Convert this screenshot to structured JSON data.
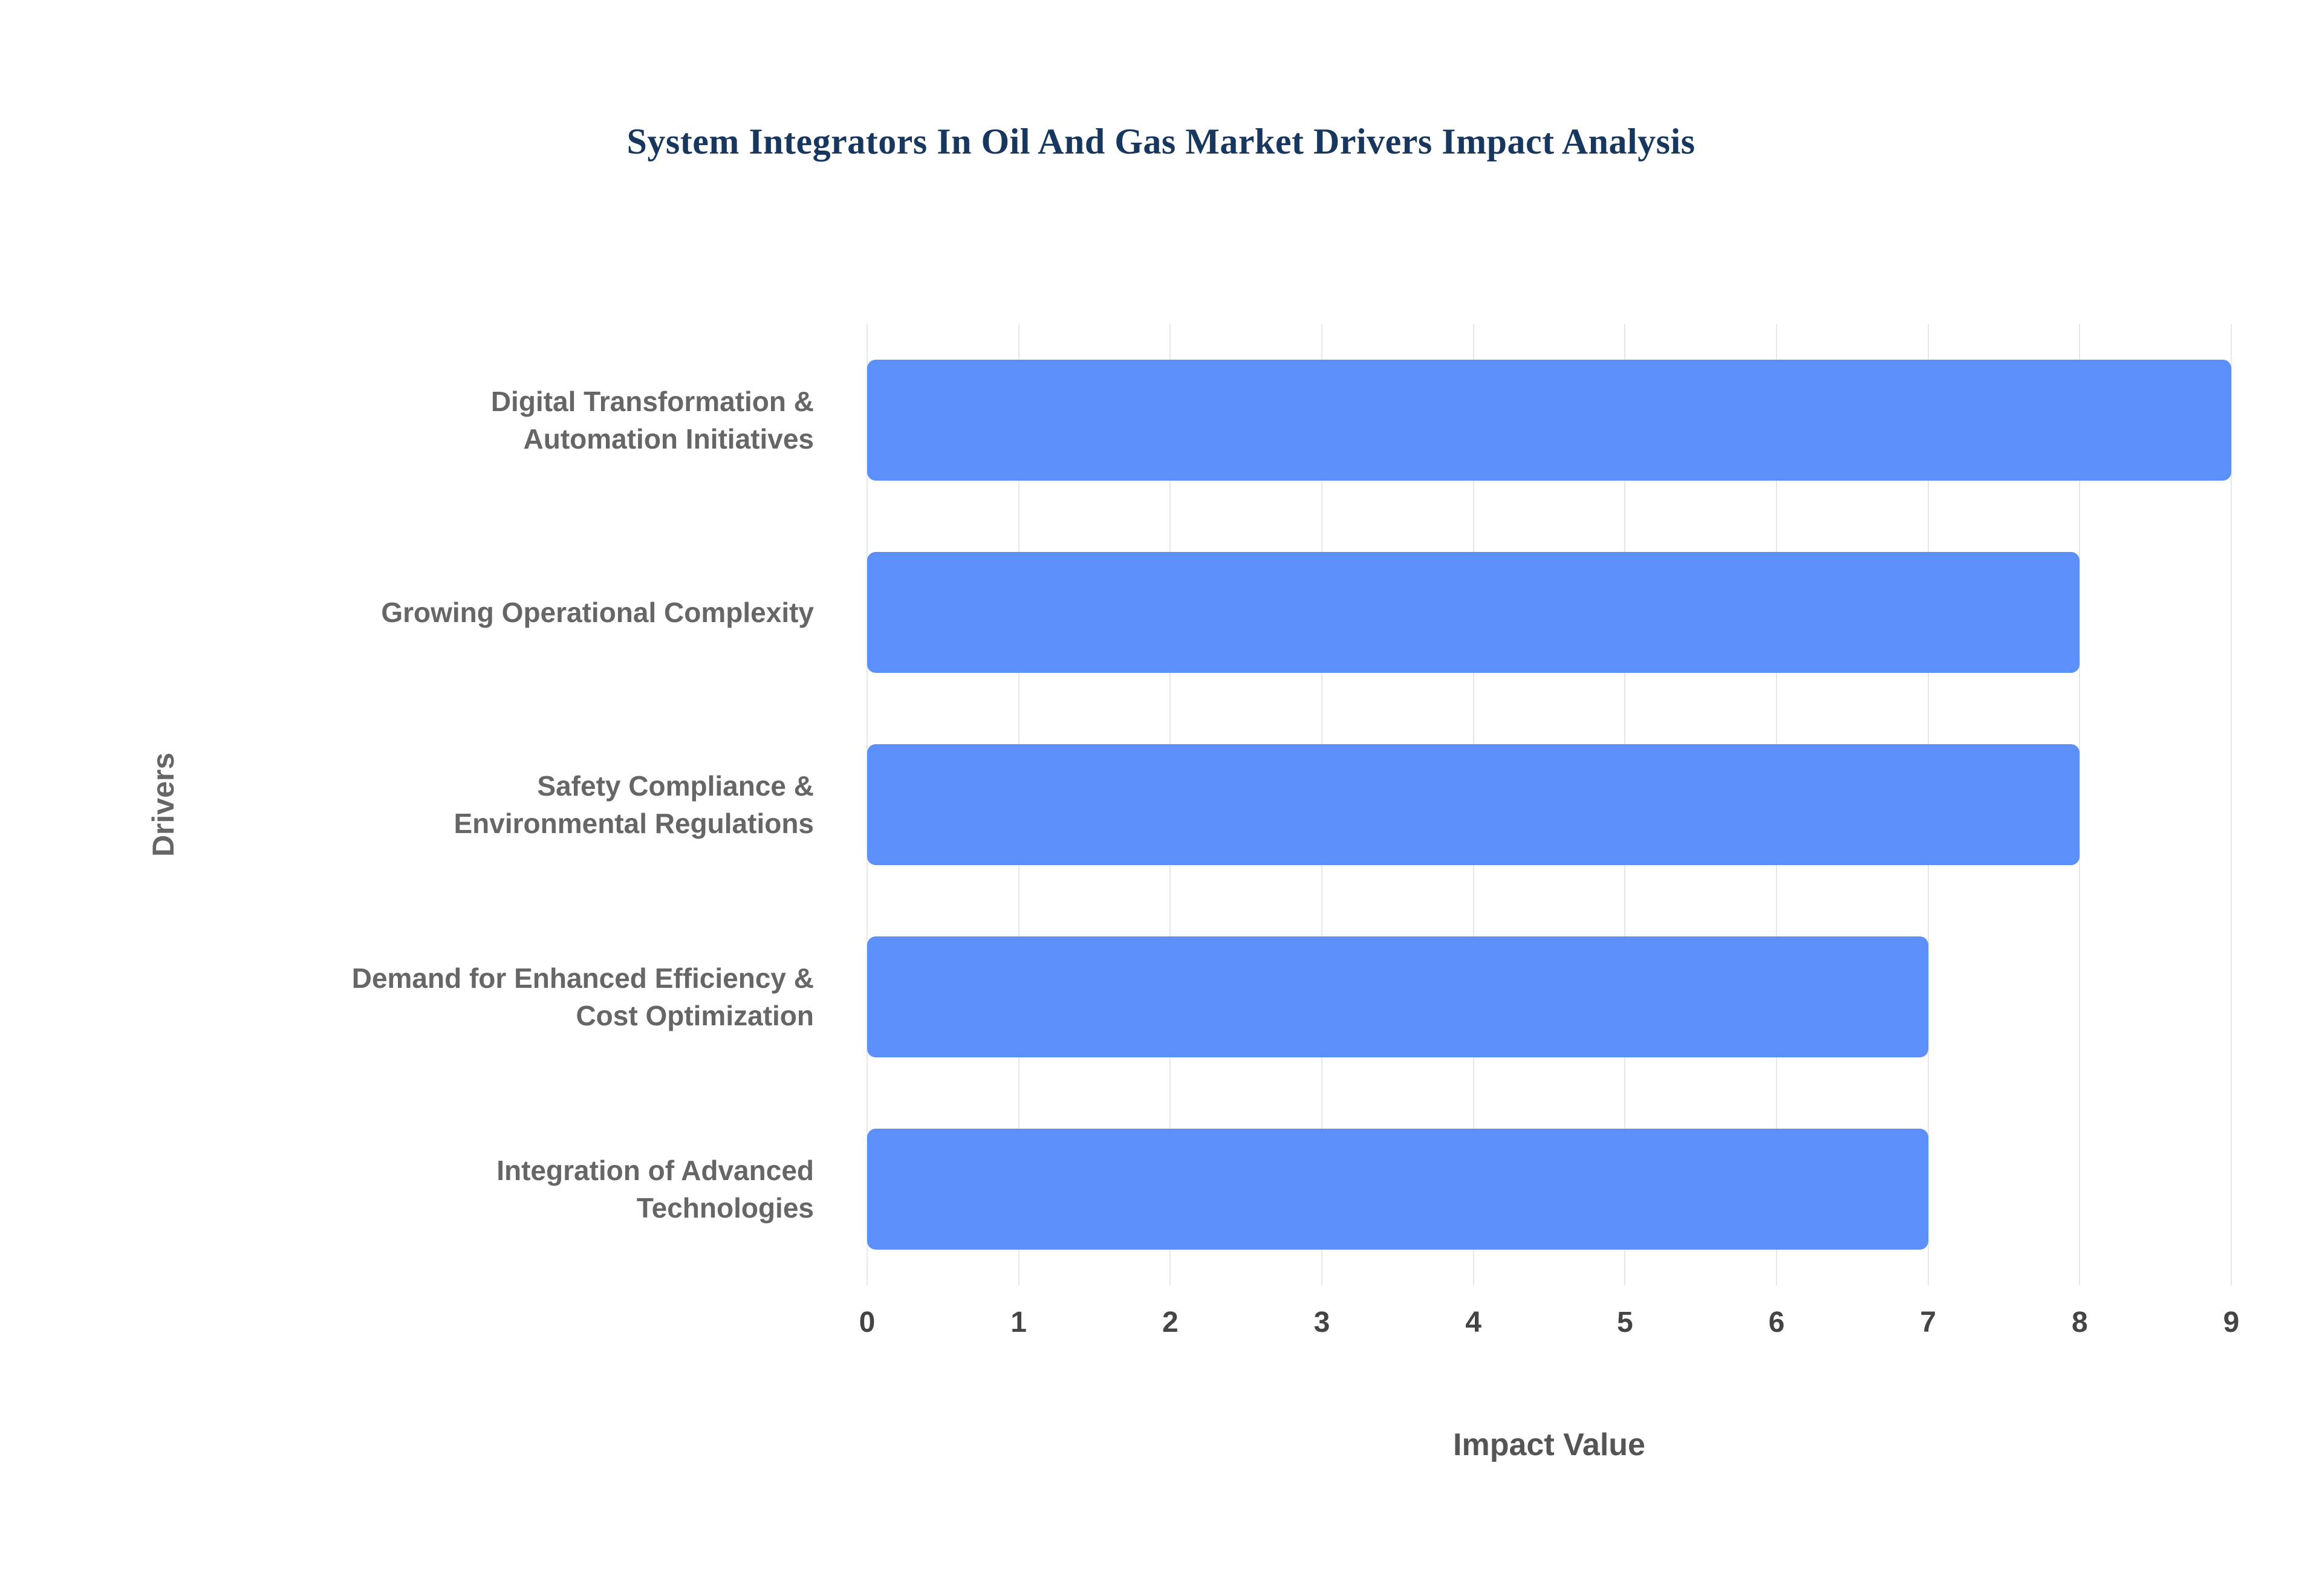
{
  "chart_data": {
    "type": "bar",
    "orientation": "horizontal",
    "title": "System Integrators In Oil And Gas Market Drivers Impact Analysis",
    "categories": [
      "Digital Transformation & Automation Initiatives",
      "Growing Operational Complexity",
      "Safety Compliance & Environmental Regulations",
      "Demand for Enhanced Efficiency & Cost Optimization",
      "Integration of Advanced Technologies"
    ],
    "values": [
      9,
      8,
      8,
      7,
      7
    ],
    "xlabel": "Impact Value",
    "ylabel": "Drivers",
    "xlim": [
      0,
      9
    ],
    "xticks": [
      "0",
      "1",
      "2",
      "3",
      "4",
      "5",
      "6",
      "7",
      "8",
      "9"
    ],
    "grid": "vertical",
    "legend": "none",
    "bar_color": "#5b8ff9",
    "title_color": "#17375e",
    "background_color": "#ffffff"
  }
}
